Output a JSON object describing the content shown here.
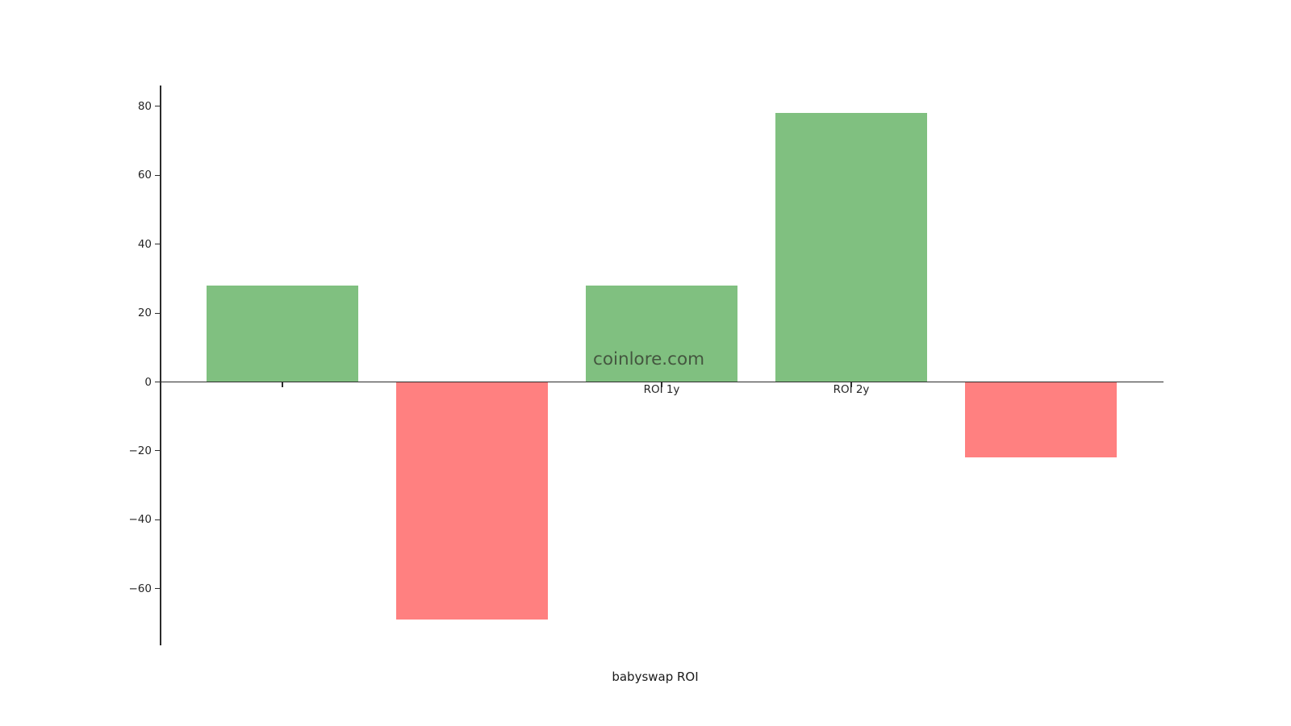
{
  "page": {
    "background": "#ffffff"
  },
  "chart_data": {
    "type": "bar",
    "title": "babyswap ROI",
    "watermark": "coinlore.com",
    "categories": [
      "",
      "",
      "ROI 1y",
      "ROI 2y",
      ""
    ],
    "values": [
      28,
      -69,
      28,
      78,
      -22
    ],
    "bar_colors": [
      "#80c080",
      "#ff8080",
      "#80c080",
      "#80c080",
      "#ff8080"
    ],
    "positive_color": "#80c080",
    "negative_color": "#ff8080",
    "yticks": [
      80,
      60,
      40,
      20,
      0,
      -20,
      -40,
      -60
    ],
    "ylim": [
      -76,
      86
    ],
    "xlabel": "",
    "ylabel": "",
    "grid": false,
    "legend": null,
    "axis_color": "#2b2b2b",
    "tick_label_color": "#262626",
    "watermark_color": "#44563f"
  }
}
